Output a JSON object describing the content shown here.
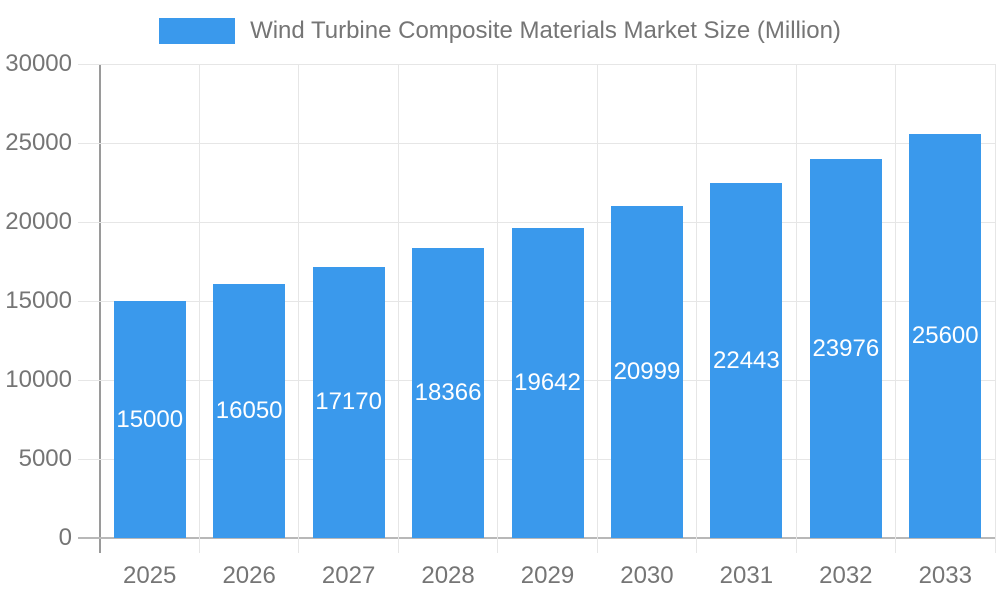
{
  "legend": {
    "label": "Wind Turbine Composite Materials Market Size (Million)"
  },
  "chart_data": {
    "type": "bar",
    "title": "Wind Turbine Composite Materials Market Size (Million)",
    "categories": [
      "2025",
      "2026",
      "2027",
      "2028",
      "2029",
      "2030",
      "2031",
      "2032",
      "2033"
    ],
    "values": [
      15000,
      16050,
      17170,
      18366,
      19642,
      20999,
      22443,
      23976,
      25600
    ],
    "value_labels": [
      "15000",
      "16050",
      "17170",
      "18366",
      "19642",
      "20999",
      "22443",
      "23976",
      "25600"
    ],
    "xlabel": "",
    "ylabel": "",
    "ylim": [
      0,
      30000
    ],
    "yticks": [
      0,
      5000,
      10000,
      15000,
      20000,
      25000,
      30000
    ],
    "ytick_labels": [
      "0",
      "5000",
      "10000",
      "15000",
      "20000",
      "25000",
      "30000"
    ],
    "grid": true,
    "legend_position": "top",
    "value_label_position": "inside-center"
  },
  "colors": {
    "bar": "#3A99EC",
    "grid_line": "#E6E6E6",
    "zero_line": "#B8B8B8",
    "axis_line": "#9A9A9A",
    "axis_text": "#757575",
    "value_label": "#FFFFFF",
    "background": "#FFFFFF"
  }
}
